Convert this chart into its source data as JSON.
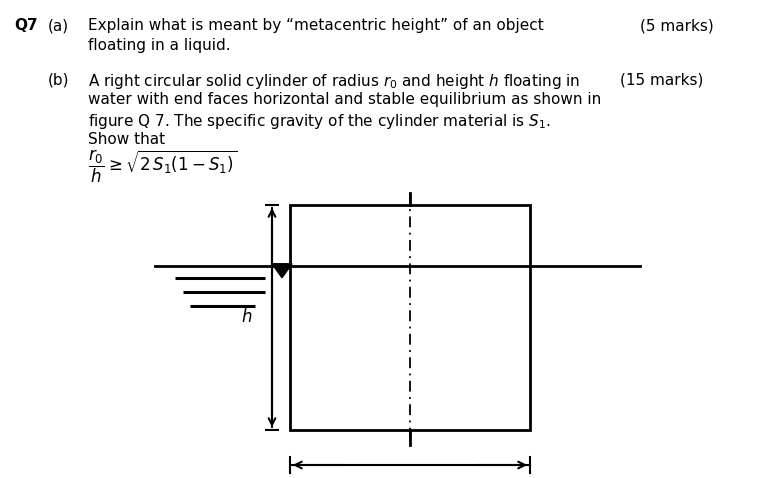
{
  "background_color": "#ffffff",
  "text_color": "#000000",
  "fig_width": 7.84,
  "fig_height": 4.78,
  "dpi": 100,
  "q7_label": "Q7",
  "a_label": "(a)",
  "a_text_line1": "Explain what is meant by “metacentric height” of an object",
  "a_text_line2": "floating in a liquid.",
  "a_marks": "(5 marks)",
  "b_label": "(b)",
  "b_text_line1": "A right circular solid cylinder of radius $r_0$ and height $h$ floating in",
  "b_text_line2": "water with end faces horizontal and stable equilibrium as shown in",
  "b_text_line3": "figure Q 7. The specific gravity of the cylinder material is $S_1$.",
  "b_text_line4": "Show that",
  "b_marks": "(15 marks)",
  "formula": "$\\dfrac{r_0}{h} \\geq \\sqrt{2\\,S_1(1-S_1)}$"
}
